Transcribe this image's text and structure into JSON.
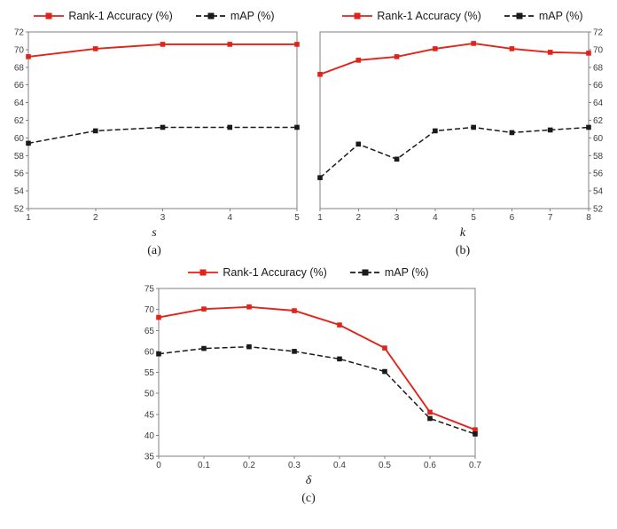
{
  "figure": {
    "legend_labels": [
      "Rank-1 Accuracy (%)",
      "mAP (%)"
    ]
  },
  "style": {
    "rank1_color": "#e2231a",
    "map_color": "#1a1a1a",
    "axis_color": "#808080",
    "tick_text_color": "#3d3d3d"
  },
  "chart_data": [
    {
      "type": "line",
      "caption": "(a)",
      "xlabel": "s",
      "x": [
        1,
        2,
        3,
        4,
        5
      ],
      "xtick_labels": [
        "1",
        "2",
        "3",
        "4",
        "5"
      ],
      "ylim": [
        52,
        72
      ],
      "ytick_step": 2,
      "y_axis_side": "left",
      "grid": false,
      "legend_position": "top",
      "series": [
        {
          "name": "Rank-1 Accuracy (%)",
          "color": "#e2231a",
          "line_style": "solid",
          "values": [
            69.2,
            70.1,
            70.6,
            70.6,
            70.6
          ]
        },
        {
          "name": "mAP (%)",
          "color": "#1a1a1a",
          "line_style": "dashed",
          "values": [
            59.4,
            60.8,
            61.2,
            61.2,
            61.2
          ]
        }
      ]
    },
    {
      "type": "line",
      "caption": "(b)",
      "xlabel": "k",
      "x": [
        1,
        2,
        3,
        4,
        5,
        6,
        7,
        8
      ],
      "xtick_labels": [
        "1",
        "2",
        "3",
        "4",
        "5",
        "6",
        "7",
        "8"
      ],
      "ylim": [
        52,
        72
      ],
      "ytick_step": 2,
      "y_axis_side": "right",
      "grid": false,
      "legend_position": "top",
      "series": [
        {
          "name": "Rank-1 Accuracy (%)",
          "color": "#e2231a",
          "line_style": "solid",
          "values": [
            67.2,
            68.8,
            69.2,
            70.1,
            70.7,
            70.1,
            69.7,
            69.6
          ]
        },
        {
          "name": "mAP (%)",
          "color": "#1a1a1a",
          "line_style": "dashed",
          "values": [
            55.5,
            59.3,
            57.6,
            60.8,
            61.2,
            60.6,
            60.9,
            61.2
          ]
        }
      ]
    },
    {
      "type": "line",
      "caption": "(c)",
      "xlabel": "δ",
      "x": [
        0,
        0.1,
        0.2,
        0.3,
        0.4,
        0.5,
        0.6,
        0.7
      ],
      "xtick_labels": [
        "0",
        "0.1",
        "0.2",
        "0.3",
        "0.4",
        "0.5",
        "0.6",
        "0.7"
      ],
      "ylim": [
        35,
        75
      ],
      "ytick_step": 5,
      "y_axis_side": "left",
      "grid": false,
      "legend_position": "top",
      "series": [
        {
          "name": "Rank-1 Accuracy (%)",
          "color": "#e2231a",
          "line_style": "solid",
          "values": [
            68.1,
            70.1,
            70.6,
            69.7,
            66.3,
            60.8,
            45.5,
            41.3
          ]
        },
        {
          "name": "mAP (%)",
          "color": "#1a1a1a",
          "line_style": "dashed",
          "values": [
            59.4,
            60.7,
            61.1,
            60.0,
            58.2,
            55.2,
            44.0,
            40.3
          ]
        }
      ]
    }
  ]
}
